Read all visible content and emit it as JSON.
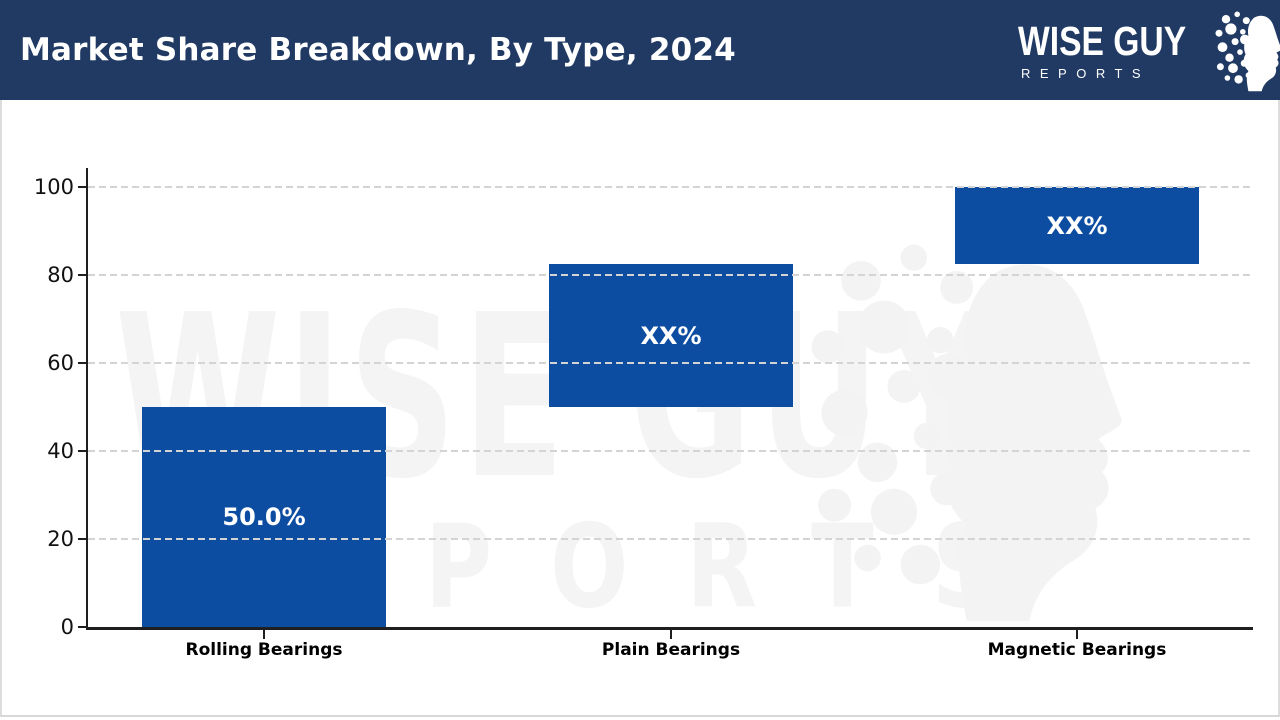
{
  "header": {
    "title": "Market Share Breakdown, By Type, 2024",
    "logo": {
      "line1": "WISE GUY",
      "line2": "REPORTS"
    }
  },
  "watermark": {
    "line1": "WISE GUY",
    "line2": "REPORTS"
  },
  "chart_data": {
    "type": "bar",
    "subtype": "waterfall",
    "title": "Market Share Breakdown, By Type, 2024",
    "categories": [
      "Rolling Bearings",
      "Plain Bearings",
      "Magnetic Bearings"
    ],
    "segments": [
      {
        "category": "Rolling Bearings",
        "start": 0,
        "end": 50,
        "label": "50.0%"
      },
      {
        "category": "Plain Bearings",
        "start": 50,
        "end": 82.5,
        "label": "XX%"
      },
      {
        "category": "Magnetic Bearings",
        "start": 82.5,
        "end": 100,
        "label": "XX%"
      }
    ],
    "xlabel": "",
    "ylabel": "",
    "ylim": [
      0,
      100
    ],
    "yticks": [
      0,
      20,
      40,
      60,
      80,
      100
    ],
    "grid": "horizontal-dashed",
    "legend": "none",
    "bar_color": "#0C4DA2"
  },
  "colors": {
    "header_bg": "#203A64",
    "bar": "#0C4DA2",
    "grid": "#d4d4d4",
    "axis": "#1f1f1f",
    "watermark": "#f3f3f3",
    "card_border": "#dcdcdc"
  }
}
